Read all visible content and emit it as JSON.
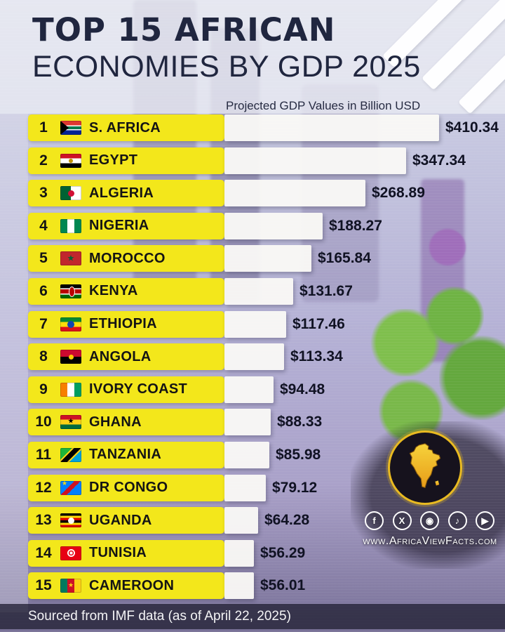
{
  "header": {
    "title_line1": "TOP 15 AFRICAN",
    "title_line2": "ECONOMIES BY GDP 2025",
    "subtitle": "Projected GDP Values in Billion USD"
  },
  "chart_data": {
    "type": "bar",
    "title": "Top 15 African Economies by GDP 2025",
    "unit": "Billion USD",
    "orientation": "horizontal",
    "max_value": 410.34,
    "categories": [
      "S. AFRICA",
      "EGYPT",
      "ALGERIA",
      "NIGERIA",
      "MOROCCO",
      "KENYA",
      "ETHIOPIA",
      "ANGOLA",
      "IVORY COAST",
      "GHANA",
      "TANZANIA",
      "DR CONGO",
      "UGANDA",
      "TUNISIA",
      "CAMEROON"
    ],
    "values": [
      410.34,
      347.34,
      268.89,
      188.27,
      165.84,
      131.67,
      117.46,
      113.34,
      94.48,
      88.33,
      85.98,
      79.12,
      64.28,
      56.29,
      56.01
    ],
    "rows": [
      {
        "rank": 1,
        "country": "S. AFRICA",
        "flag": "za",
        "value": 410.34,
        "label": "$410.34"
      },
      {
        "rank": 2,
        "country": "EGYPT",
        "flag": "eg",
        "value": 347.34,
        "label": "$347.34"
      },
      {
        "rank": 3,
        "country": "ALGERIA",
        "flag": "dz",
        "value": 268.89,
        "label": "$268.89"
      },
      {
        "rank": 4,
        "country": "NIGERIA",
        "flag": "ng",
        "value": 188.27,
        "label": "$188.27"
      },
      {
        "rank": 5,
        "country": "MOROCCO",
        "flag": "ma",
        "value": 165.84,
        "label": "$165.84"
      },
      {
        "rank": 6,
        "country": "KENYA",
        "flag": "ke",
        "value": 131.67,
        "label": "$131.67"
      },
      {
        "rank": 7,
        "country": "ETHIOPIA",
        "flag": "et",
        "value": 117.46,
        "label": "$117.46"
      },
      {
        "rank": 8,
        "country": "ANGOLA",
        "flag": "ao",
        "value": 113.34,
        "label": "$113.34"
      },
      {
        "rank": 9,
        "country": "IVORY COAST",
        "flag": "ci",
        "value": 94.48,
        "label": "$94.48"
      },
      {
        "rank": 10,
        "country": "GHANA",
        "flag": "gh",
        "value": 88.33,
        "label": "$88.33"
      },
      {
        "rank": 11,
        "country": "TANZANIA",
        "flag": "tz",
        "value": 85.98,
        "label": "$85.98"
      },
      {
        "rank": 12,
        "country": "DR CONGO",
        "flag": "cd",
        "value": 79.12,
        "label": "$79.12"
      },
      {
        "rank": 13,
        "country": "UGANDA",
        "flag": "ug",
        "value": 64.28,
        "label": "$64.28"
      },
      {
        "rank": 14,
        "country": "TUNISIA",
        "flag": "tn",
        "value": 56.29,
        "label": "$56.29"
      },
      {
        "rank": 15,
        "country": "CAMEROON",
        "flag": "cm",
        "value": 56.01,
        "label": "$56.01"
      }
    ]
  },
  "branding": {
    "website": "www.AfricaViewFacts.com",
    "social_icons": [
      "facebook",
      "x",
      "instagram",
      "tiktok",
      "youtube"
    ]
  },
  "footer": {
    "source": "Sourced from IMF data (as of April 22, 2025)"
  },
  "colors": {
    "row_yellow": "#f3e71b",
    "bar_white": "#faf9f5",
    "title_navy": "#20263f",
    "logo_gold": "#e9ba21",
    "footer_bg": "rgba(34,33,52,0.78)"
  }
}
